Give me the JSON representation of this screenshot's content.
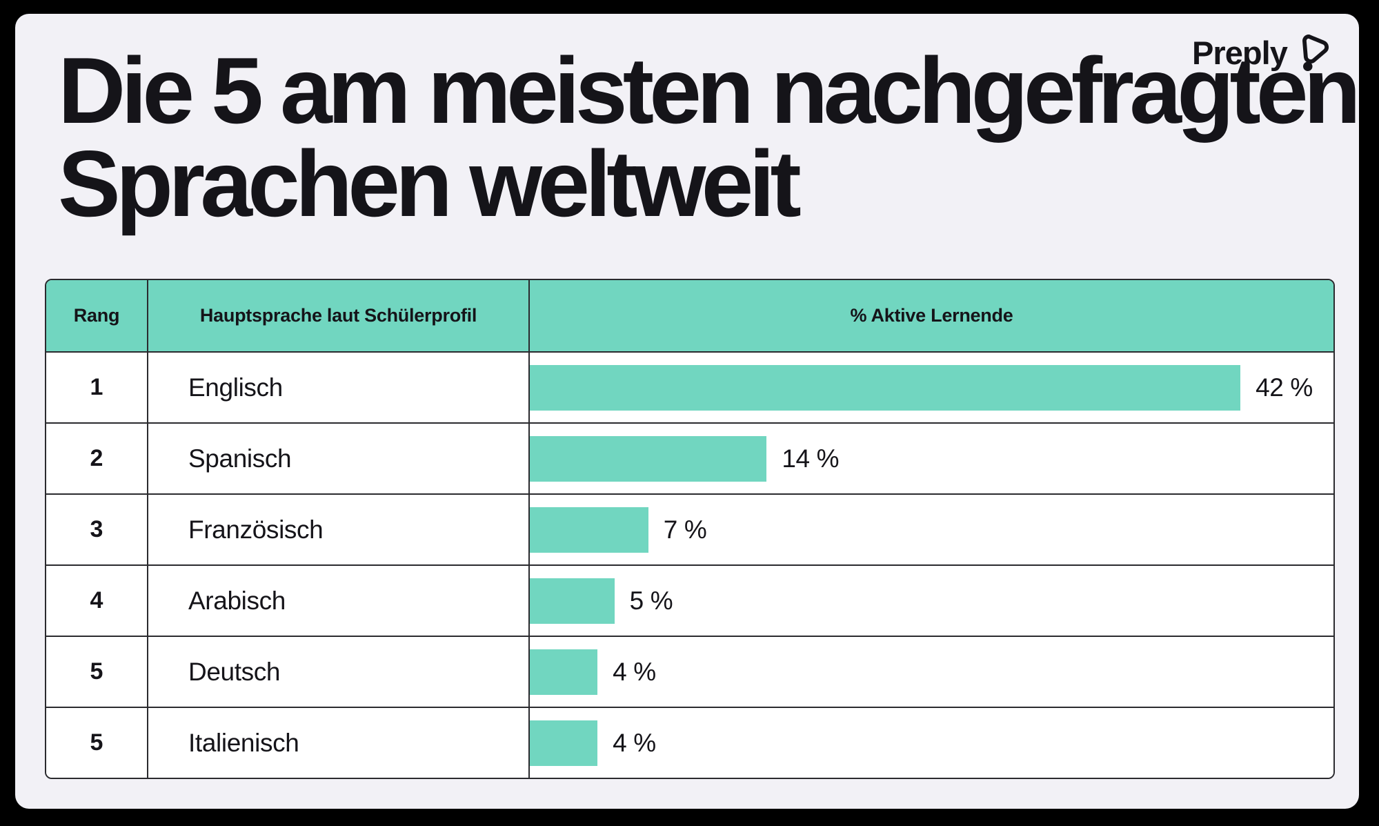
{
  "page": {
    "background": "#000000",
    "card_background": "#f2f1f6",
    "accent": "#71d6c0",
    "text_color": "#151419"
  },
  "logo": {
    "text": "Preply",
    "icon": "preply-speech-bubble-icon"
  },
  "title": {
    "line1": "Die 5 am meisten nachgefragten",
    "line2": "Sprachen weltweit"
  },
  "table": {
    "headers": {
      "rank": "Rang",
      "language": "Hauptsprache laut Schülerprofil",
      "percent": "% Aktive Lernende"
    }
  },
  "chart_data": {
    "type": "bar",
    "orientation": "horizontal",
    "title": "Die 5 am meisten nachgefragten Sprachen weltweit",
    "columns": [
      "Rang",
      "Hauptsprache laut Schülerprofil",
      "% Aktive Lernende"
    ],
    "categories": [
      "Englisch",
      "Spanisch",
      "Französisch",
      "Arabisch",
      "Deutsch",
      "Italienisch"
    ],
    "values": [
      42,
      14,
      7,
      5,
      4,
      4
    ],
    "rows": [
      {
        "rank": "1",
        "language": "Englisch",
        "value": 42,
        "label": "42 %"
      },
      {
        "rank": "2",
        "language": "Spanisch",
        "value": 14,
        "label": "14 %"
      },
      {
        "rank": "3",
        "language": "Französisch",
        "value": 7,
        "label": "7 %"
      },
      {
        "rank": "4",
        "language": "Arabisch",
        "value": 5,
        "label": "5 %"
      },
      {
        "rank": "5",
        "language": "Deutsch",
        "value": 4,
        "label": "4 %"
      },
      {
        "rank": "5",
        "language": "Italienisch",
        "value": 4,
        "label": "4 %"
      }
    ],
    "xlim": [
      0,
      47.5
    ],
    "grid": false,
    "legend": false,
    "bar_color": "#71d6c0",
    "value_labels_position": "right-of-bar"
  }
}
